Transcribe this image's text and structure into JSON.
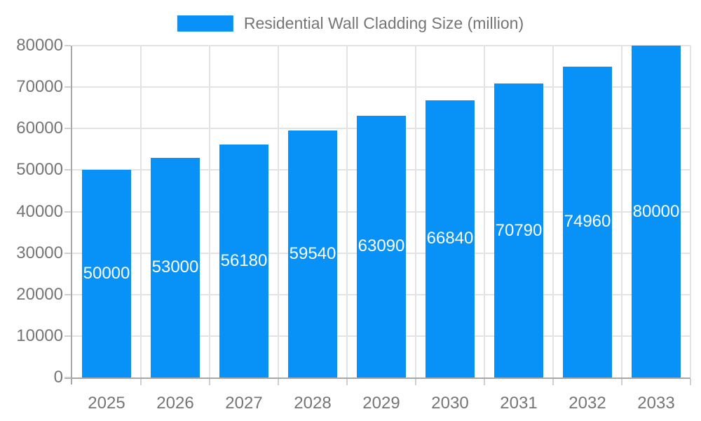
{
  "chart_data": {
    "type": "bar",
    "title": "Residential Wall Cladding Size (million)",
    "categories": [
      "2025",
      "2026",
      "2027",
      "2028",
      "2029",
      "2030",
      "2031",
      "2032",
      "2033"
    ],
    "series": [
      {
        "name": "Residential Wall Cladding Size (million)",
        "values": [
          50000,
          53000,
          56180,
          59540,
          63090,
          66840,
          70790,
          74960,
          80000
        ]
      }
    ],
    "value_labels": [
      "50000",
      "53000",
      "56180",
      "59540",
      "63090",
      "66840",
      "70790",
      "74960",
      "80000"
    ],
    "xlabel": "",
    "ylabel": "",
    "ylim": [
      0,
      80000
    ],
    "ytick_step": 10000,
    "ytick_labels": [
      "0",
      "10000",
      "20000",
      "30000",
      "40000",
      "50000",
      "60000",
      "70000",
      "80000"
    ],
    "legend_position": "top",
    "grid": true,
    "colors": {
      "bar": "#0892f8",
      "axis_text": "#757575",
      "value_label": "#ffffff",
      "gridline": "#e3e3e3",
      "axis_line": "#a8a8a8",
      "tick": "#cfcfcf",
      "background": "#ffffff"
    }
  }
}
